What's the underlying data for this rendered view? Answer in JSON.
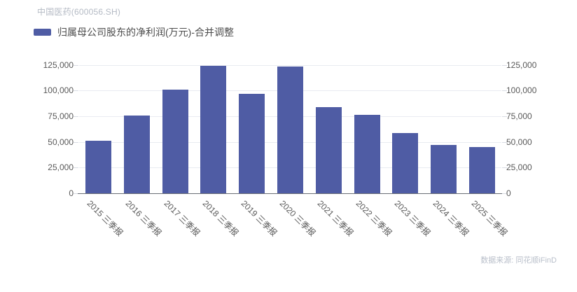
{
  "header": {
    "title": "中国医药(600056.SH)"
  },
  "legend": {
    "label": "归属母公司股东的净利润(万元)-合并调整",
    "marker_color": "#4f5ca4"
  },
  "chart_data": {
    "type": "bar",
    "title": "中国医药(600056.SH)",
    "series_name": "归属母公司股东的净利润(万元)-合并调整",
    "categories": [
      "2015 三季报",
      "2016 三季报",
      "2017 三季报",
      "2018 三季报",
      "2019 三季报",
      "2020 三季报",
      "2021 三季报",
      "2022 三季报",
      "2023 三季报",
      "2024 三季报",
      "2025 三季报"
    ],
    "values": [
      51300,
      75500,
      101000,
      123800,
      96500,
      123500,
      83500,
      76200,
      58800,
      47000,
      44800
    ],
    "xlabel": "",
    "ylabel": "",
    "ylim": [
      0,
      125000
    ],
    "y_ticks": [
      0,
      25000,
      50000,
      75000,
      100000,
      125000
    ],
    "y_tick_labels": [
      "0",
      "25,000",
      "50,000",
      "75,000",
      "100,000",
      "125,000"
    ],
    "grid": true,
    "dual_y_axis": true,
    "bar_color": "#4f5ca4",
    "legend_position": "top-left"
  },
  "footer": {
    "source": "数据来源: 同花顺iFinD"
  }
}
